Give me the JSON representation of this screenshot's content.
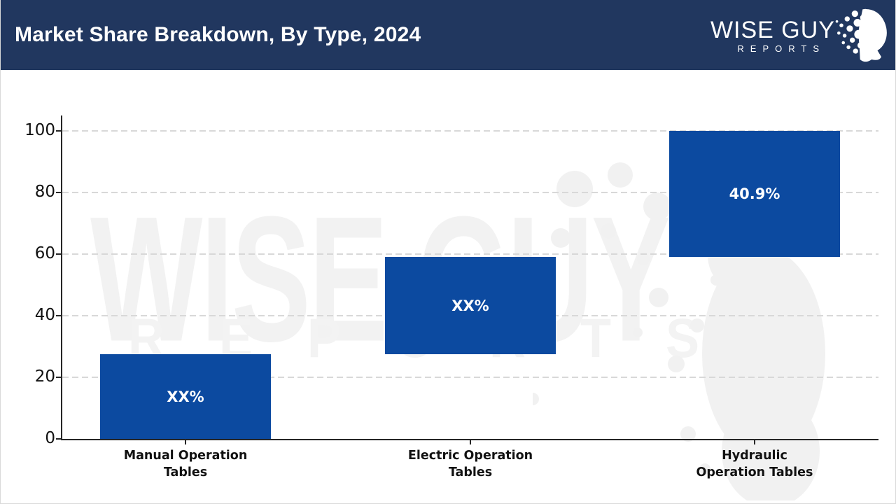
{
  "header": {
    "title": "Market Share Breakdown, By Type, 2024",
    "logo": {
      "wordmark": "WISE GUY",
      "subtext": "REPORTS"
    }
  },
  "watermark": {
    "wordmark": "WISE GUY",
    "subtext": "REPORTS"
  },
  "colors": {
    "header_navy": "#21375F",
    "bar_blue": "#0C4AA0",
    "grid_gray": "#d8d8d8",
    "axis_dark": "#262626",
    "watermark_gray": "#f2f2f2",
    "frame_gray": "#d9d9d9",
    "bar_label_white": "#ffffff"
  },
  "chart_data": {
    "type": "bar",
    "subtype": "floating-segment-bars (waterfall style)",
    "title": "Market Share Breakdown, By Type, 2024",
    "categories": [
      "Manual Operation Tables",
      "Electric Operation Tables",
      "Hydraulic Operation Tables"
    ],
    "category_label_lines": [
      [
        "Manual Operation",
        "Tables"
      ],
      [
        "Electric Operation",
        "Tables"
      ],
      [
        "Hydraulic",
        "Operation Tables"
      ]
    ],
    "segments": [
      {
        "category": "Manual Operation Tables",
        "start": 0,
        "end": 27.4,
        "label": "XX%"
      },
      {
        "category": "Electric Operation Tables",
        "start": 27.4,
        "end": 59.1,
        "label": "XX%"
      },
      {
        "category": "Hydraulic Operation Tables",
        "start": 59.1,
        "end": 100,
        "label": "40.9%"
      }
    ],
    "bar_labels": [
      "XX%",
      "XX%",
      "40.9%"
    ],
    "ylim": [
      0,
      100
    ],
    "yticks": [
      0,
      20,
      40,
      60,
      80,
      100
    ],
    "xlabel": "",
    "ylabel": "",
    "legend": "none",
    "grid": {
      "horizontal": true,
      "style": "dashed"
    }
  }
}
